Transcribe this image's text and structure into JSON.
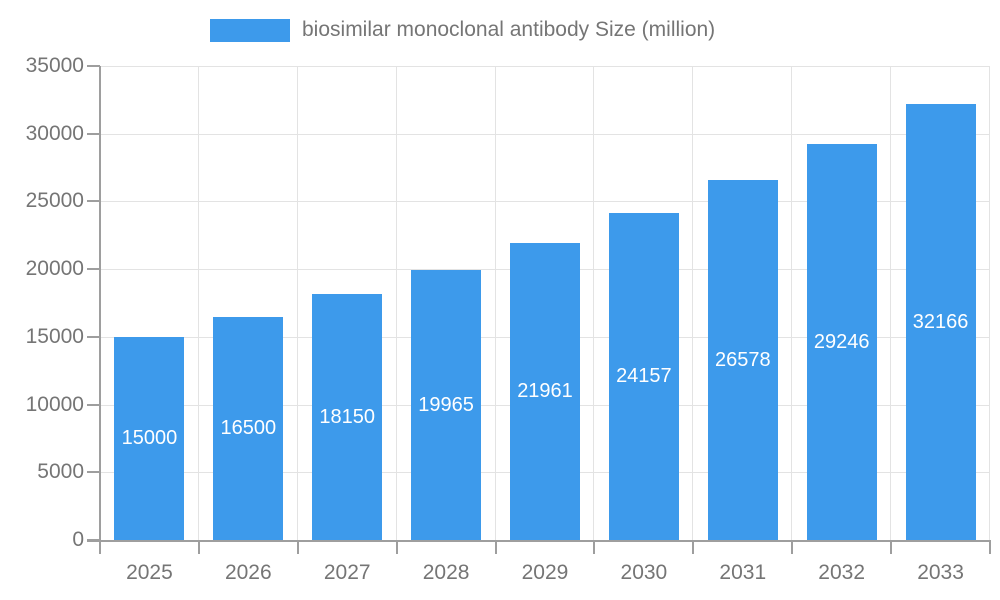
{
  "chart_data": {
    "type": "bar",
    "title": "biosimilar monoclonal antibody Size (million)",
    "categories": [
      "2025",
      "2026",
      "2027",
      "2028",
      "2029",
      "2030",
      "2031",
      "2032",
      "2033"
    ],
    "values": [
      15000,
      16500,
      18150,
      19965,
      21961,
      24157,
      26578,
      29246,
      32166
    ],
    "xlabel": "",
    "ylabel": "",
    "ylim": [
      0,
      35000
    ],
    "ytick_step": 5000,
    "y_tick_labels": [
      "0",
      "5000",
      "10000",
      "15000",
      "20000",
      "25000",
      "30000",
      "35000"
    ],
    "grid": true,
    "legend_position": "top",
    "value_labels": "inside-center",
    "bar_color": "#3D9AEB"
  },
  "colors": {
    "bar": "#3D9AEB",
    "grid": "#E3E3E3",
    "axis": "#9E9E9E",
    "tick_label": "#757575",
    "value_label": "#FFFFFF",
    "background": "#FFFFFF"
  },
  "legend": {
    "label": "biosimilar monoclonal antibody Size (million)"
  }
}
